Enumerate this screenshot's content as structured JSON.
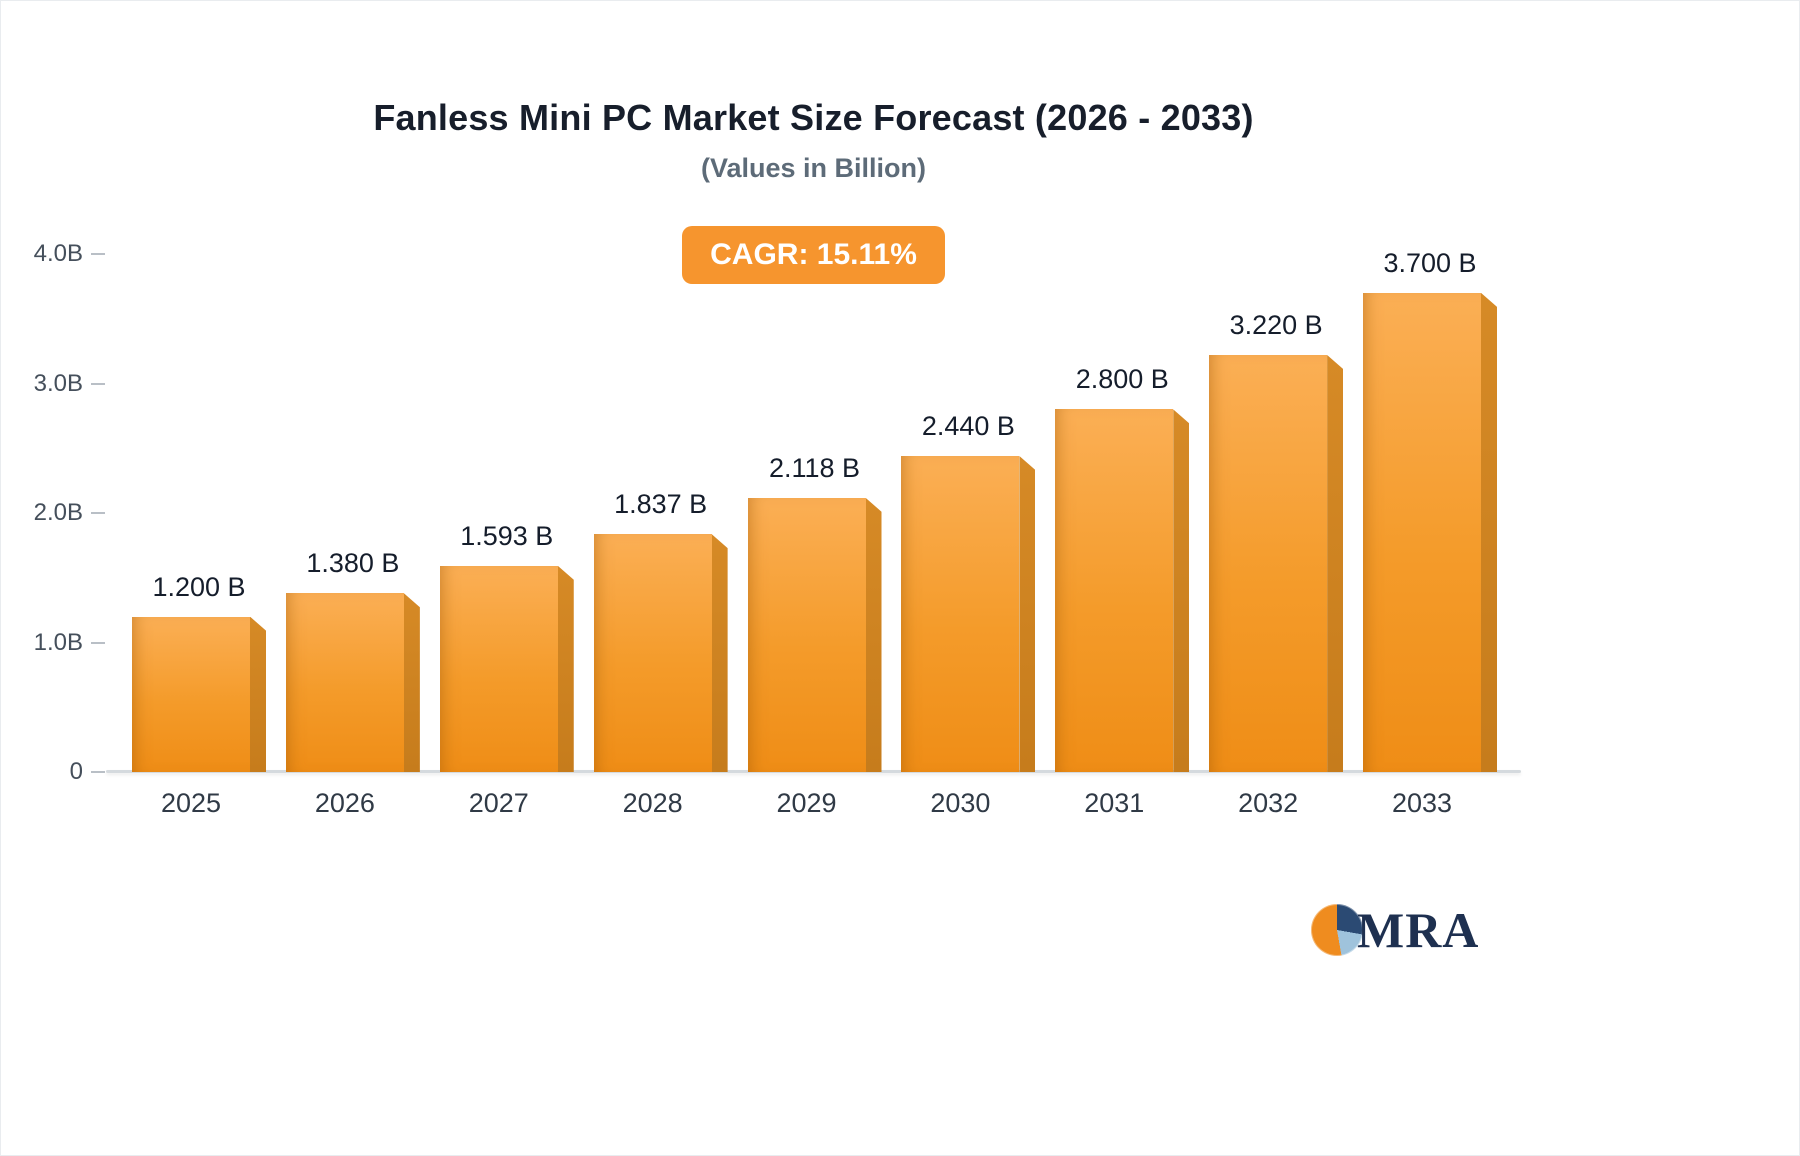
{
  "chart_data": {
    "type": "bar",
    "title": "Fanless Mini PC Market Size Forecast (2026 - 2033)",
    "subtitle": "(Values in Billion)",
    "badge": "CAGR: 15.11%",
    "categories": [
      "2025",
      "2026",
      "2027",
      "2028",
      "2029",
      "2030",
      "2031",
      "2032",
      "2033"
    ],
    "values": [
      1.2,
      1.38,
      1.593,
      1.837,
      2.118,
      2.44,
      2.8,
      3.22,
      3.7
    ],
    "value_labels": [
      "1.200 B",
      "1.380 B",
      "1.593 B",
      "1.837 B",
      "2.118 B",
      "2.440 B",
      "2.800 B",
      "3.220 B",
      "3.700 B"
    ],
    "xlabel": "",
    "ylabel": "",
    "ylim": [
      0,
      4
    ],
    "y_ticks": [
      {
        "label": "0",
        "value": 0
      },
      {
        "label": "1.0B",
        "value": 1
      },
      {
        "label": "2.0B",
        "value": 2
      },
      {
        "label": "3.0B",
        "value": 3
      },
      {
        "label": "4.0B",
        "value": 4
      }
    ],
    "grid": "off",
    "legend": "none",
    "colors": {
      "bar_top": "#fbaf55",
      "bar_mid": "#f49b2a",
      "bar_bottom": "#ef8d16",
      "bar_side": "#c67c1c",
      "badge_bg": "#f6952e",
      "badge_text": "#ffffff",
      "title_text": "#171e2b",
      "subtitle_text": "#5d6b78",
      "axis_line": "#d5dade"
    }
  },
  "logo": {
    "text": "MRA"
  }
}
